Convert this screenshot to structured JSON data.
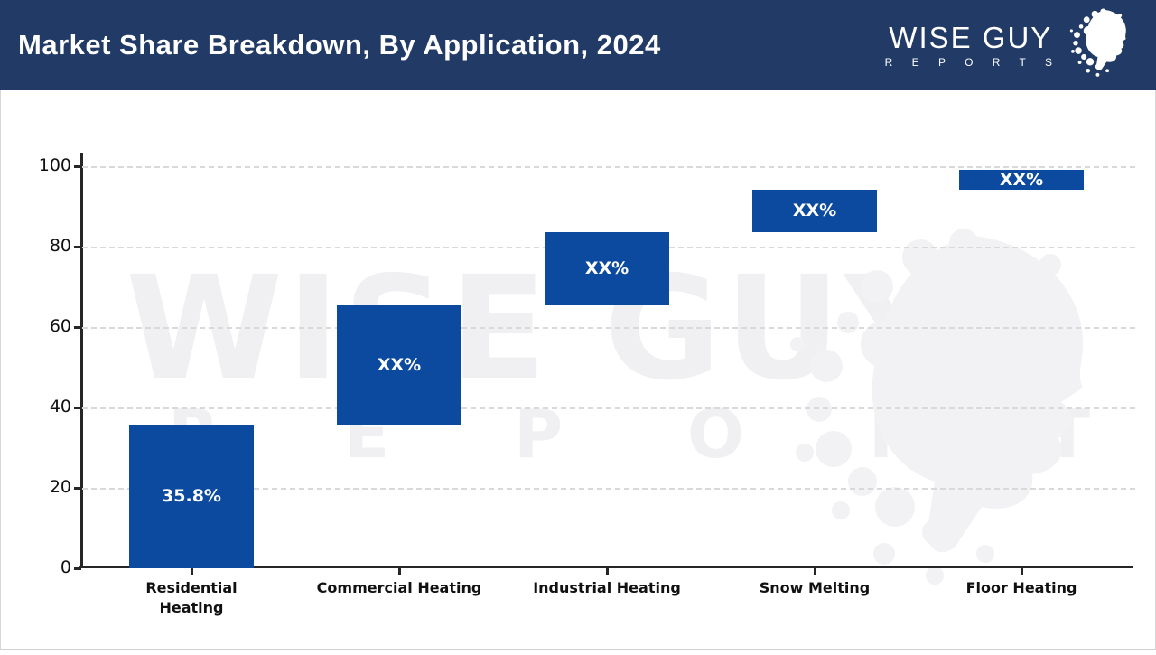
{
  "header": {
    "title": "Market Share Breakdown, By Application, 2024",
    "bg_color": "#213a66",
    "logo": {
      "wordmark": "WISE GUY",
      "subtext": "R E P O R T S"
    }
  },
  "watermark": {
    "wordmark": "WISE GUY",
    "subtext": "R E P O R T S"
  },
  "chart_data": {
    "type": "bar",
    "variant": "floating-segment-waterfall",
    "title": "Market Share Breakdown, By Application, 2024",
    "categories": [
      "Residential\nHeating",
      "Commercial Heating",
      "Industrial Heating",
      "Snow Melting",
      "Floor Heating"
    ],
    "segments": [
      {
        "category": "Residential Heating",
        "start": 0,
        "end": 35.8,
        "label": "35.8%"
      },
      {
        "category": "Commercial Heating",
        "start": 35.8,
        "end": 65.3,
        "label": "XX%"
      },
      {
        "category": "Industrial Heating",
        "start": 65.3,
        "end": 83.7,
        "label": "XX%"
      },
      {
        "category": "Snow Melting",
        "start": 83.7,
        "end": 94.2,
        "label": "XX%"
      },
      {
        "category": "Floor Heating",
        "start": 94.2,
        "end": 99.2,
        "label": "XX%"
      }
    ],
    "yticks": [
      0,
      20,
      40,
      60,
      80,
      100
    ],
    "ylim": [
      0,
      105
    ],
    "xlabel": "",
    "ylabel": "",
    "legend": "none",
    "grid": {
      "axis": "y",
      "style": "dashed",
      "color": "#d9d9d9"
    },
    "axis_color": "#262626",
    "bar_color": "#0b4a9f",
    "bar_label_color": "#ffffff"
  }
}
